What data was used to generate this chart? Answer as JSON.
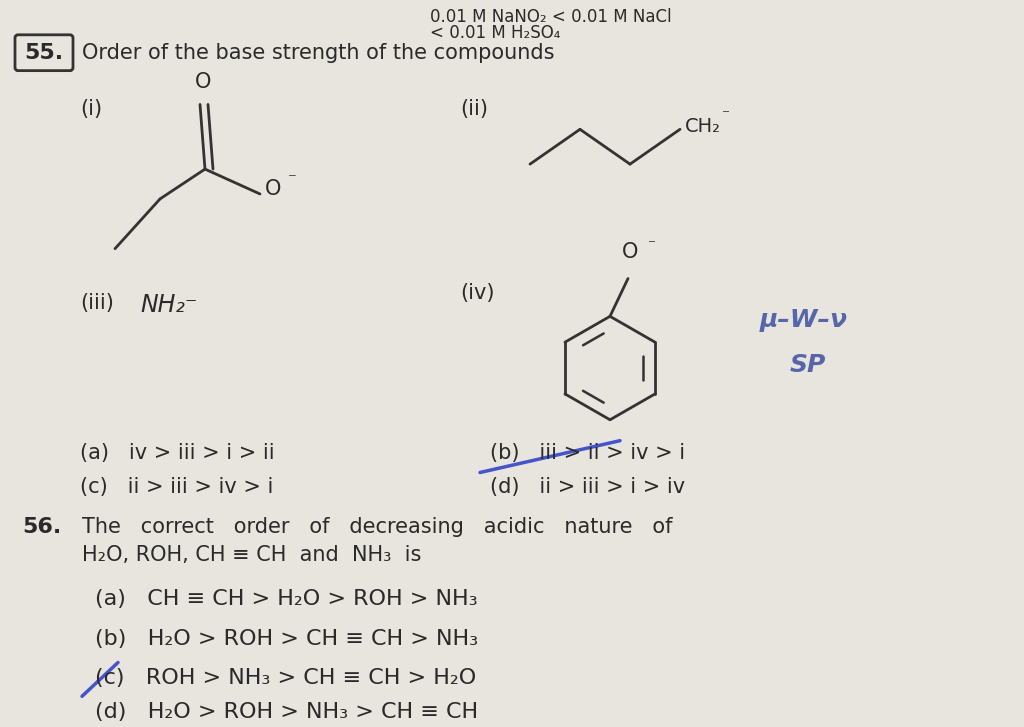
{
  "bg_color": "#e8e4de",
  "text_color": "#2a2a2a",
  "top_text1": "0.01 M NaNO₂ < 0.01 M NaCl",
  "top_text2": "< 0.01 M H₂SO₄",
  "q55_label": "55.",
  "q55_text": "Order of the base strength of the compounds",
  "roman_i": "(i)",
  "roman_ii": "(ii)",
  "roman_iii": "(iii)",
  "roman_iv": "(iv)",
  "nh2_text": "NH₂⁻",
  "opt55_a": "(a)   iv > iii > i > ii",
  "opt55_b": "(b)   iii > ii > iv > i",
  "opt55_c": "(c)   ii > iii > iv > i",
  "opt55_d": "(d)   ii > iii > i > iv",
  "hw_text": "μ–W–ν",
  "sp_text": "SP",
  "q56_label": "56.",
  "q56_line1": "The   correct   order   of   decreasing   acidic   nature   of",
  "q56_line2": "H₂O, ROH, CH ≡ CH  and  NH₃  is",
  "opt56_a": "(a)   CH ≡ CH > H₂O > ROH > NH₃",
  "opt56_b": "(b)   H₂O > ROH > CH ≡ CH > NH₃",
  "opt56_c": "(c)   ROH > NH₃ > CH ≡ CH > H₂O",
  "opt56_d": "(d)   H₂O > ROH > NH₃ > CH ≡ CH",
  "font_size": 15,
  "font_size_small": 12
}
